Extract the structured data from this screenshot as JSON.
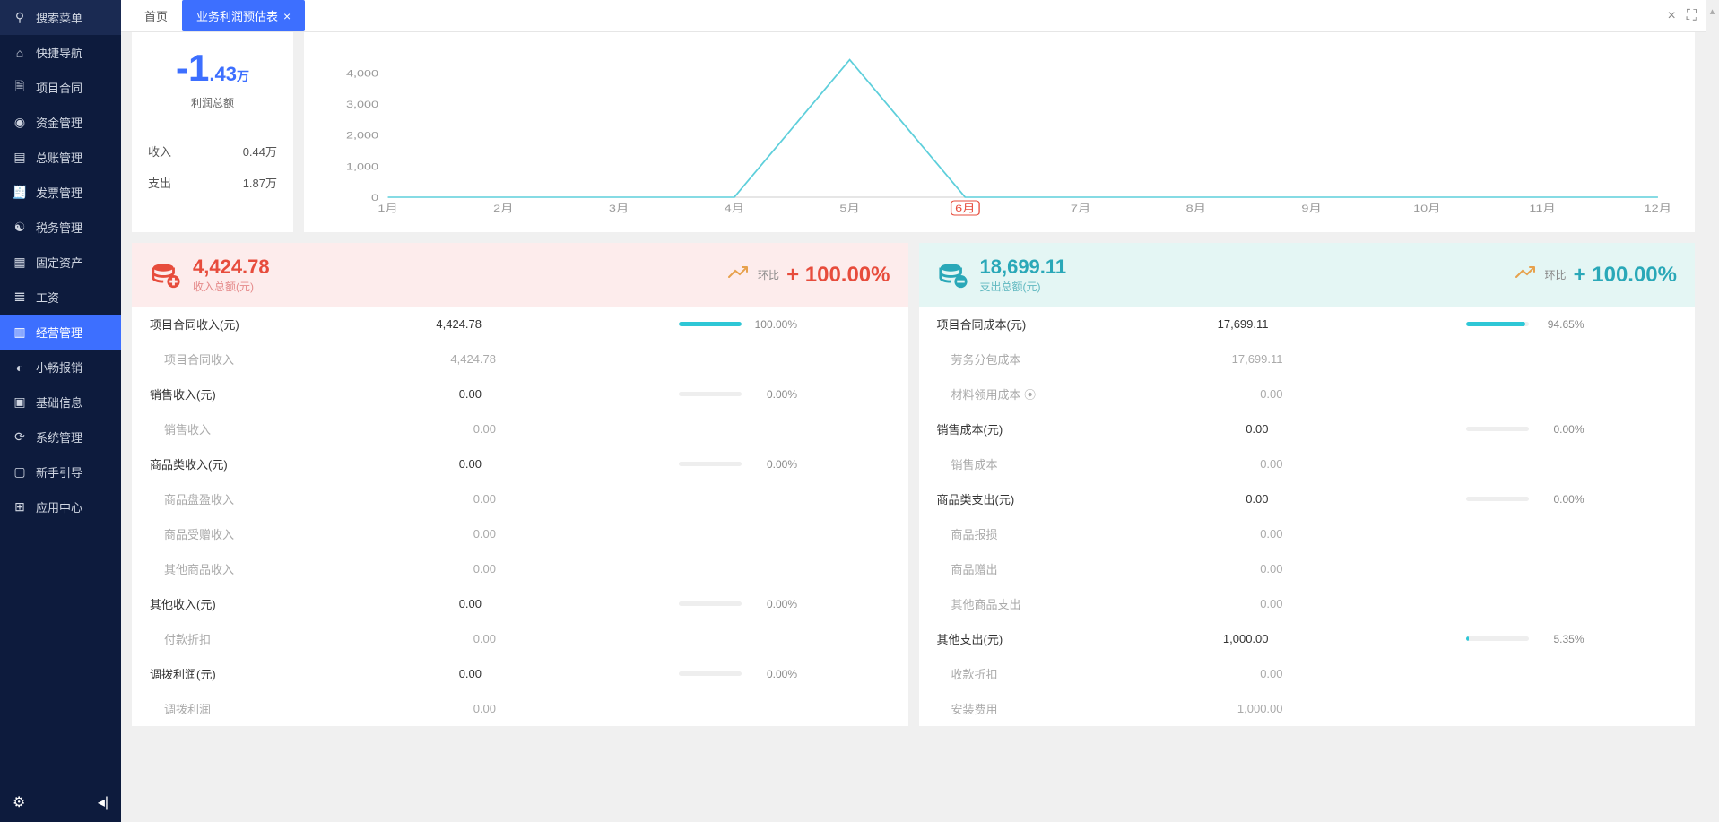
{
  "sidebar": {
    "items": [
      {
        "label": "搜索菜单",
        "icon": "search"
      },
      {
        "label": "快捷导航",
        "icon": "home"
      },
      {
        "label": "项目合同",
        "icon": "doc"
      },
      {
        "label": "资金管理",
        "icon": "money"
      },
      {
        "label": "总账管理",
        "icon": "ledger"
      },
      {
        "label": "发票管理",
        "icon": "invoice"
      },
      {
        "label": "税务管理",
        "icon": "tax"
      },
      {
        "label": "固定资产",
        "icon": "asset"
      },
      {
        "label": "工资",
        "icon": "salary"
      },
      {
        "label": "经营管理",
        "icon": "mgmt",
        "active": true
      },
      {
        "label": "小畅报销",
        "icon": "reimburse"
      },
      {
        "label": "基础信息",
        "icon": "info"
      },
      {
        "label": "系统管理",
        "icon": "system"
      },
      {
        "label": "新手引导",
        "icon": "guide"
      },
      {
        "label": "应用中心",
        "icon": "apps"
      }
    ]
  },
  "tabs": {
    "home": "首页",
    "active": "业务利润预估表"
  },
  "summary": {
    "big_int": "-1",
    "big_dec": ".43",
    "big_unit": "万",
    "label": "利润总额",
    "rows": [
      {
        "k": "收入",
        "v": "0.44万"
      },
      {
        "k": "支出",
        "v": "1.87万"
      }
    ]
  },
  "chart": {
    "type": "line",
    "y_ticks": [
      0,
      1000,
      2000,
      3000,
      4000
    ],
    "x_labels": [
      "1月",
      "2月",
      "3月",
      "4月",
      "5月",
      "6月",
      "7月",
      "8月",
      "9月",
      "10月",
      "11月",
      "12月"
    ],
    "current_x_idx": 5,
    "current_color": "#e74c3c",
    "line_color": "#5ecfdb",
    "grid_color": "#eeeeee",
    "axis_text_color": "#999999",
    "values": [
      0,
      0,
      0,
      0,
      4424,
      0,
      0,
      0,
      0,
      0,
      0,
      0
    ],
    "ylim": [
      0,
      4500
    ],
    "background": "#ffffff"
  },
  "income": {
    "amount": "4,424.78",
    "sub": "收入总额(元)",
    "ratio_label": "环比",
    "ratio_val": "+ 100.00%",
    "header_bg": "#fdecec",
    "accent": "#e74c3c",
    "rows": [
      {
        "name": "项目合同收入(元)",
        "val": "4,424.78",
        "pct": "100.00%",
        "pctv": 100,
        "type": "parent"
      },
      {
        "name": "项目合同收入",
        "val": "4,424.78",
        "type": "child"
      },
      {
        "name": "销售收入(元)",
        "val": "0.00",
        "pct": "0.00%",
        "pctv": 0,
        "type": "parent"
      },
      {
        "name": "销售收入",
        "val": "0.00",
        "type": "child"
      },
      {
        "name": "商品类收入(元)",
        "val": "0.00",
        "pct": "0.00%",
        "pctv": 0,
        "type": "parent"
      },
      {
        "name": "商品盘盈收入",
        "val": "0.00",
        "type": "child"
      },
      {
        "name": "商品受赠收入",
        "val": "0.00",
        "type": "child"
      },
      {
        "name": "其他商品收入",
        "val": "0.00",
        "type": "child"
      },
      {
        "name": "其他收入(元)",
        "val": "0.00",
        "pct": "0.00%",
        "pctv": 0,
        "type": "parent"
      },
      {
        "name": "付款折扣",
        "val": "0.00",
        "type": "child"
      },
      {
        "name": "调拨利润(元)",
        "val": "0.00",
        "pct": "0.00%",
        "pctv": 0,
        "type": "parent"
      },
      {
        "name": "调拨利润",
        "val": "0.00",
        "type": "child"
      }
    ]
  },
  "expense": {
    "amount": "18,699.11",
    "sub": "支出总额(元)",
    "ratio_label": "环比",
    "ratio_val": "+ 100.00%",
    "header_bg": "#e4f6f4",
    "accent": "#2aa8b8",
    "rows": [
      {
        "name": "项目合同成本(元)",
        "val": "17,699.11",
        "pct": "94.65%",
        "pctv": 94.65,
        "type": "parent"
      },
      {
        "name": "劳务分包成本",
        "val": "17,699.11",
        "type": "child"
      },
      {
        "name": "材料领用成本 ⦿",
        "val": "0.00",
        "type": "child"
      },
      {
        "name": "销售成本(元)",
        "val": "0.00",
        "pct": "0.00%",
        "pctv": 0,
        "type": "parent"
      },
      {
        "name": "销售成本",
        "val": "0.00",
        "type": "child"
      },
      {
        "name": "商品类支出(元)",
        "val": "0.00",
        "pct": "0.00%",
        "pctv": 0,
        "type": "parent"
      },
      {
        "name": "商品报损",
        "val": "0.00",
        "type": "child"
      },
      {
        "name": "商品赠出",
        "val": "0.00",
        "type": "child"
      },
      {
        "name": "其他商品支出",
        "val": "0.00",
        "type": "child"
      },
      {
        "name": "其他支出(元)",
        "val": "1,000.00",
        "pct": "5.35%",
        "pctv": 5.35,
        "type": "parent"
      },
      {
        "name": "收款折扣",
        "val": "0.00",
        "type": "child"
      },
      {
        "name": "安装费用",
        "val": "1,000.00",
        "type": "child"
      }
    ]
  },
  "bar_fill_color": "#2ec7d6",
  "bar_track_color": "#eeeeee"
}
